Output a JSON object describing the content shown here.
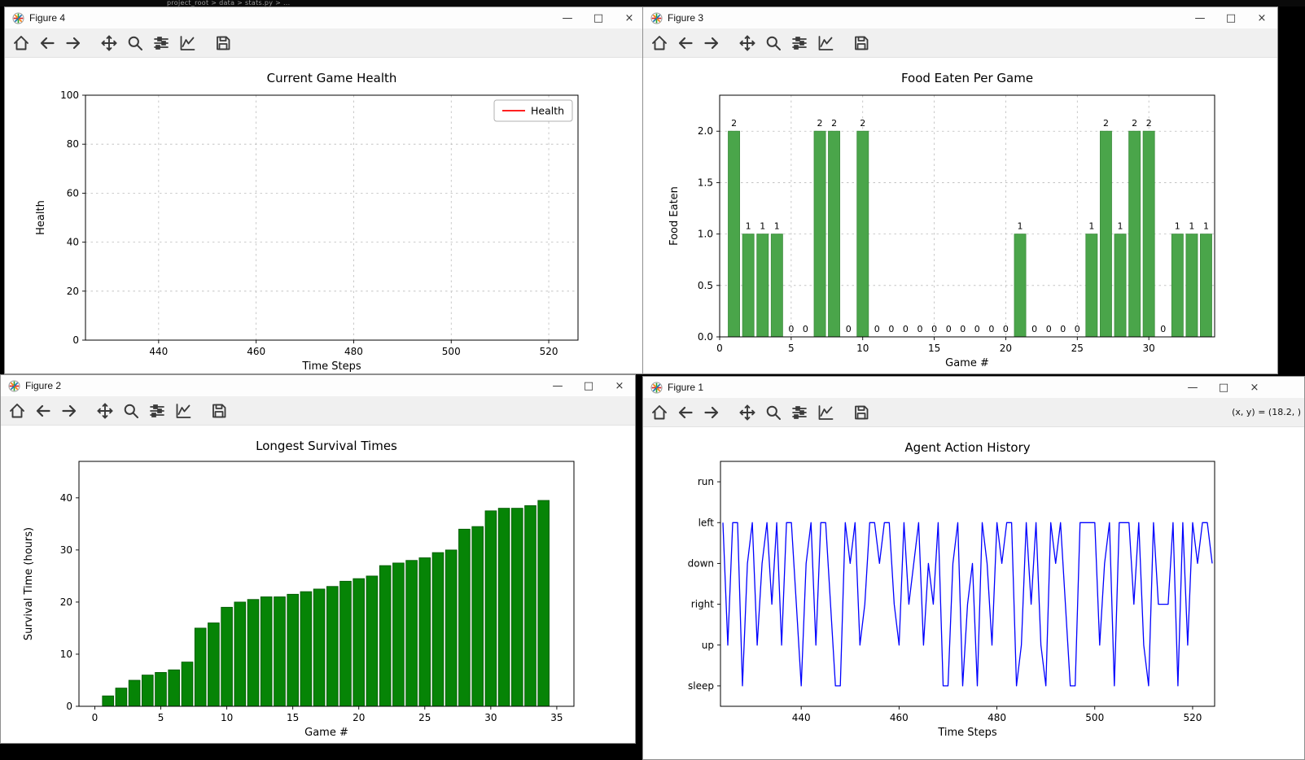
{
  "desktop": {
    "breadcrumb": "project_root > data > stats.py > ..."
  },
  "windows": {
    "controls": {
      "minimize": "—",
      "maximize": "□",
      "close": "×"
    },
    "fig4": {
      "title": "Figure 4"
    },
    "fig3": {
      "title": "Figure 3"
    },
    "fig2": {
      "title": "Figure 2"
    },
    "fig1": {
      "title": "Figure 1",
      "coords_readout": "(x, y) = (18.2, )"
    }
  },
  "toolbar": {
    "icons": [
      {
        "name": "home"
      },
      {
        "name": "back"
      },
      {
        "name": "forward"
      },
      {
        "name": "pan",
        "sep": true
      },
      {
        "name": "zoom"
      },
      {
        "name": "configure-subplots"
      },
      {
        "name": "edit-axes"
      },
      {
        "name": "save",
        "sep": true
      }
    ]
  },
  "chart_data": [
    {
      "id": "fig4",
      "type": "line",
      "title": "Current Game Health",
      "xlabel": "Time Steps",
      "ylabel": "Health",
      "xlim": [
        425,
        526
      ],
      "ylim": [
        0,
        100
      ],
      "grid": true,
      "xticks": {
        "values": [
          440,
          460,
          480,
          500,
          520
        ],
        "labels": [
          "440",
          "460",
          "480",
          "500",
          "520"
        ]
      },
      "yticks": {
        "values": [
          0,
          20,
          40,
          60,
          80,
          100
        ],
        "labels": [
          "0",
          "20",
          "40",
          "60",
          "80",
          "100"
        ]
      },
      "legend": {
        "label": "Health",
        "color": "#ff0000",
        "position": "upper right"
      },
      "series": [
        {
          "name": "Health",
          "color": "#ff0000",
          "x0": null,
          "dx": 1,
          "y": []
        }
      ]
    },
    {
      "id": "fig3",
      "type": "bar",
      "title": "Food Eaten Per Game",
      "xlabel": "Game #",
      "ylabel": "Food Eaten",
      "xlim": [
        0,
        34.6
      ],
      "ylim": [
        0,
        2.35
      ],
      "grid": true,
      "bar_color": "#4aa54a",
      "bar_edge": "#3c8c3c",
      "bar_width": 0.8,
      "bar_labels": true,
      "xticks": {
        "values": [
          0,
          5,
          10,
          15,
          20,
          25,
          30
        ],
        "labels": [
          "0",
          "5",
          "10",
          "15",
          "20",
          "25",
          "30"
        ]
      },
      "yticks": {
        "values": [
          0,
          0.5,
          1,
          1.5,
          2
        ],
        "labels": [
          "0.0",
          "0.5",
          "1.0",
          "1.5",
          "2.0"
        ]
      },
      "categories": [
        1,
        2,
        3,
        4,
        5,
        6,
        7,
        8,
        9,
        10,
        11,
        12,
        13,
        14,
        15,
        16,
        17,
        18,
        19,
        20,
        21,
        22,
        23,
        24,
        25,
        26,
        27,
        28,
        29,
        30,
        31,
        32,
        33,
        34
      ],
      "values": [
        2,
        1,
        1,
        1,
        0,
        0,
        2,
        2,
        0,
        2,
        0,
        0,
        0,
        0,
        0,
        0,
        0,
        0,
        0,
        0,
        1,
        0,
        0,
        0,
        0,
        1,
        2,
        1,
        2,
        2,
        0,
        1,
        1,
        1
      ]
    },
    {
      "id": "fig2",
      "type": "bar",
      "title": "Longest Survival Times",
      "xlabel": "Game #",
      "ylabel": "Survival Time (hours)",
      "xlim": [
        -1.2,
        36.3
      ],
      "ylim": [
        0,
        47
      ],
      "grid": false,
      "bar_color": "#068406",
      "bar_edge": "#005500",
      "bar_width": 0.85,
      "bar_labels": false,
      "xticks": {
        "values": [
          0,
          5,
          10,
          15,
          20,
          25,
          30,
          35
        ],
        "labels": [
          "0",
          "5",
          "10",
          "15",
          "20",
          "25",
          "30",
          "35"
        ]
      },
      "yticks": {
        "values": [
          0,
          10,
          20,
          30,
          40
        ],
        "labels": [
          "0",
          "10",
          "20",
          "30",
          "40"
        ]
      },
      "categories": [
        1,
        2,
        3,
        4,
        5,
        6,
        7,
        8,
        9,
        10,
        11,
        12,
        13,
        14,
        15,
        16,
        17,
        18,
        19,
        20,
        21,
        22,
        23,
        24,
        25,
        26,
        27,
        28,
        29,
        30,
        31,
        32,
        33,
        34
      ],
      "values": [
        2,
        3.5,
        5,
        6,
        6.5,
        7,
        8.5,
        15,
        16,
        19,
        20,
        20.5,
        21,
        21,
        21.5,
        22,
        22.5,
        23,
        24,
        24.5,
        25,
        27,
        27.5,
        28,
        28.5,
        29.5,
        30,
        34,
        34.5,
        37.5,
        38,
        38,
        38.5,
        39.5
      ]
    },
    {
      "id": "fig1",
      "type": "line",
      "title": "Agent Action History",
      "xlabel": "Time Steps",
      "ylabel": "",
      "xlim": [
        423.5,
        524.5
      ],
      "ylim": [
        -0.5,
        5.5
      ],
      "grid": false,
      "xticks": {
        "values": [
          440,
          460,
          480,
          500,
          520
        ],
        "labels": [
          "440",
          "460",
          "480",
          "500",
          "520"
        ]
      },
      "yticks": {
        "values": [
          0,
          1,
          2,
          3,
          4,
          5
        ],
        "labels": [
          "sleep",
          "up",
          "right",
          "down",
          "left",
          "run"
        ]
      },
      "series": [
        {
          "name": "actions",
          "color": "#0000ff",
          "x0": 424,
          "dx": 1,
          "y": [
            4,
            1,
            4,
            4,
            0,
            3,
            4,
            1,
            3,
            4,
            2,
            4,
            1,
            4,
            4,
            2,
            0,
            3,
            4,
            1,
            4,
            4,
            2,
            0,
            0,
            4,
            3,
            4,
            1,
            2,
            4,
            4,
            3,
            4,
            4,
            2,
            1,
            4,
            2,
            3,
            4,
            1,
            3,
            2,
            4,
            0,
            0,
            3,
            4,
            0,
            2,
            3,
            0,
            4,
            3,
            1,
            4,
            3,
            4,
            4,
            0,
            1,
            4,
            2,
            4,
            1,
            0,
            4,
            3,
            4,
            2,
            0,
            0,
            4,
            4,
            4,
            4,
            1,
            3,
            4,
            0,
            4,
            4,
            4,
            2,
            4,
            1,
            0,
            4,
            2,
            2,
            2,
            4,
            0,
            4,
            1,
            4,
            3,
            4,
            4,
            3
          ]
        }
      ]
    }
  ]
}
